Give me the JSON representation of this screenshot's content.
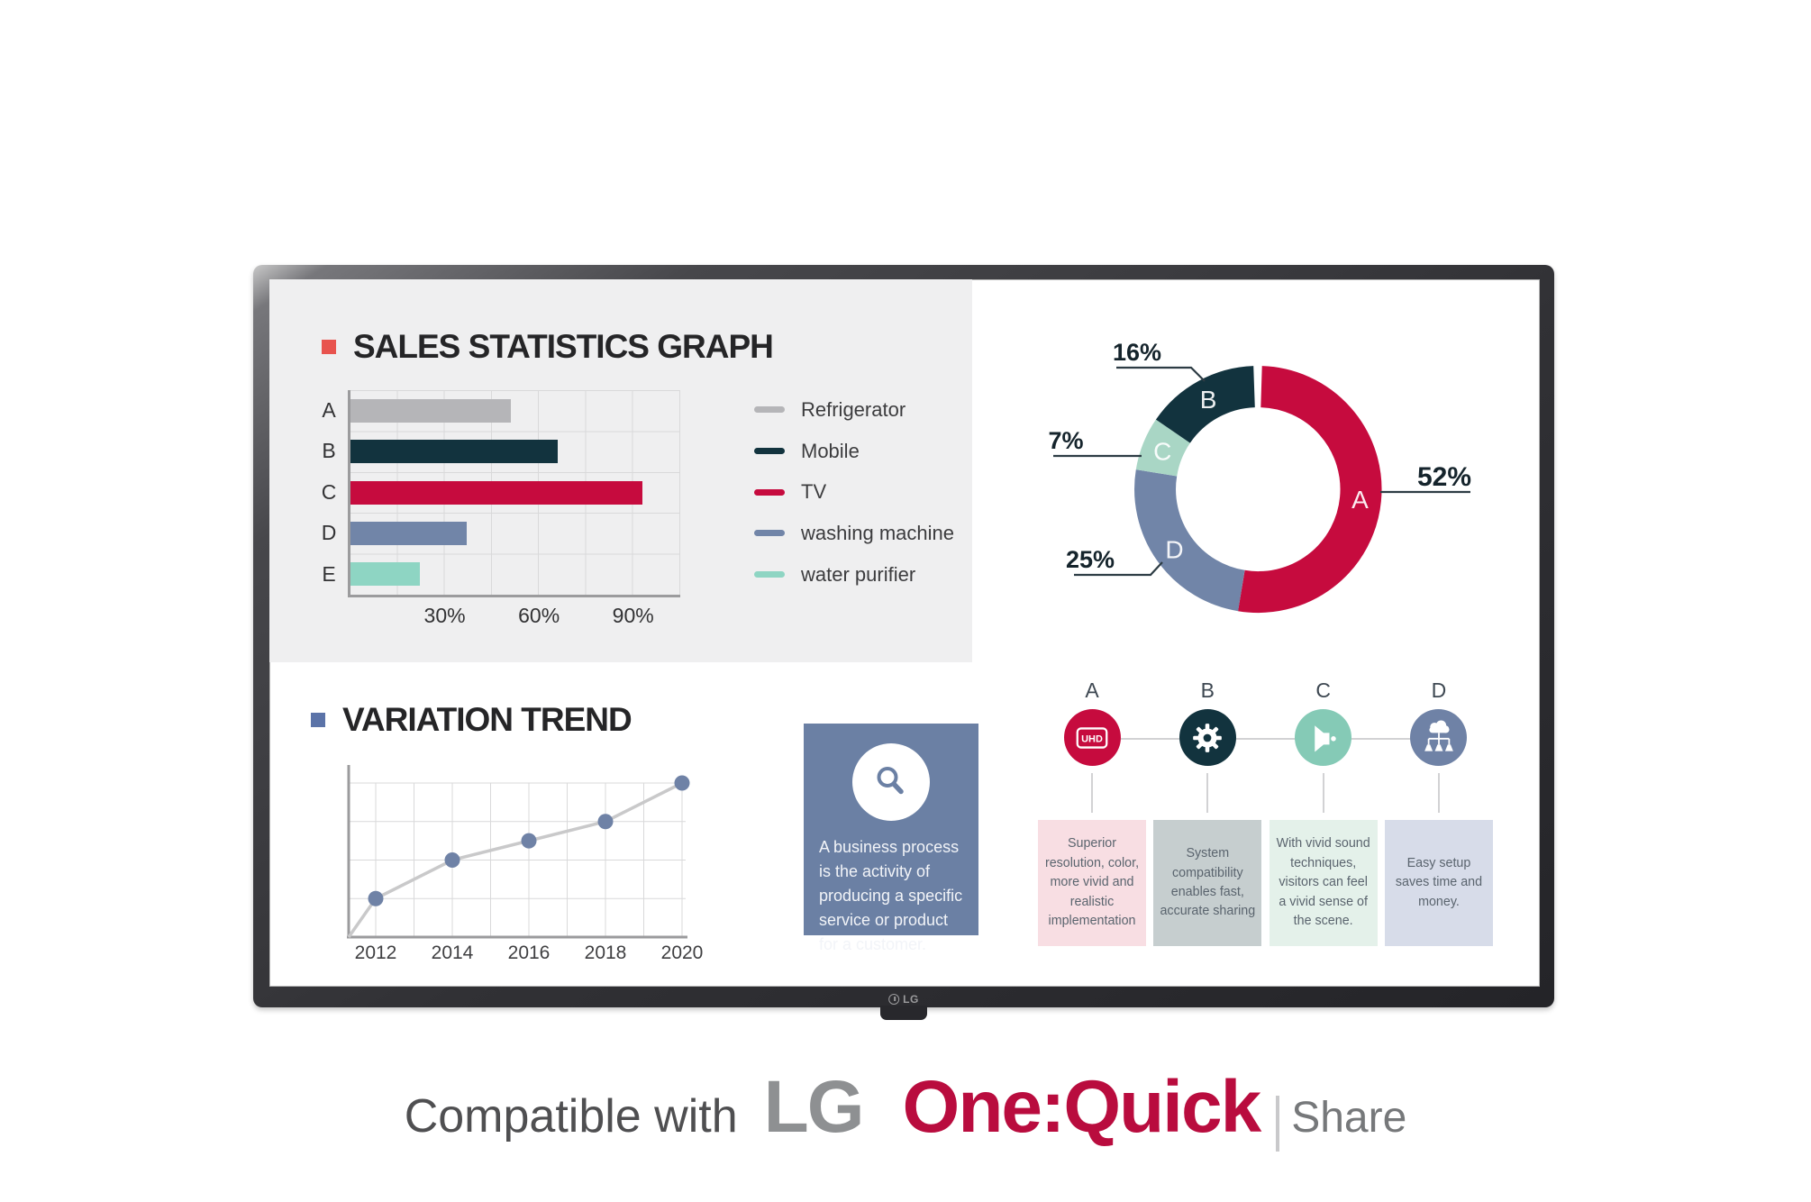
{
  "monitor": {
    "logo": "LG"
  },
  "screen": {
    "sales_panel": {
      "bullet_color": "#e8534e",
      "title": "SALES STATISTICS GRAPH"
    },
    "variation_panel": {
      "bullet_color": "#5b73a8",
      "title": "VARIATION TREND"
    },
    "process_box": {
      "background": "#6b80a4",
      "icon": "magnifier-icon",
      "text": "A business process is the activity of producing a specific service or product for a customer."
    },
    "features": {
      "items": [
        {
          "label": "A",
          "icon": "uhd-badge-icon",
          "icon_text": "UHD",
          "circle_color": "#c60b3e",
          "card_color": "#f8dee3",
          "text": "Superior resolution, color, more vivid and realistic implementation"
        },
        {
          "label": "B",
          "icon": "gear-icon",
          "circle_color": "#12333e",
          "card_color": "#c6cecf",
          "text": "System compatibility enables fast, accurate sharing"
        },
        {
          "label": "C",
          "icon": "speaker-icon",
          "circle_color": "#85cab6",
          "card_color": "#e4f1ea",
          "text": "With vivid sound techniques, visitors can feel a vivid sense of the scene."
        },
        {
          "label": "D",
          "icon": "network-icon",
          "circle_color": "#6f82a6",
          "card_color": "#d7dce9",
          "text": "Easy setup saves time and money."
        }
      ]
    }
  },
  "tagline": {
    "prefix": "Compatible with",
    "brand": "LG",
    "product": "One:Quick",
    "suffix": "Share",
    "product_color": "#b90c3e"
  },
  "chart_data": [
    {
      "type": "bar",
      "orientation": "horizontal",
      "title": "SALES STATISTICS GRAPH",
      "categories": [
        "A",
        "B",
        "C",
        "D",
        "E"
      ],
      "values": [
        51,
        66,
        93,
        37,
        22
      ],
      "unit": "%",
      "xlim": [
        0,
        105
      ],
      "x_tick_values": [
        30,
        60,
        90
      ],
      "x_tick_labels": [
        "30%",
        "60%",
        "90%"
      ],
      "grid": true,
      "bar_colors": [
        "#b5b5b8",
        "#12333e",
        "#c60b3e",
        "#7185a8",
        "#8ed5c3"
      ],
      "legend_position": "right",
      "legend": [
        {
          "label": "Refrigerator",
          "color": "#b5b5b8"
        },
        {
          "label": "Mobile",
          "color": "#12333e"
        },
        {
          "label": "TV",
          "color": "#c60b3e"
        },
        {
          "label": "washing machine",
          "color": "#7185a8"
        },
        {
          "label": "water purifier",
          "color": "#8ed5c3"
        }
      ]
    },
    {
      "type": "pie",
      "subtype": "donut",
      "start": "top",
      "direction": "clockwise",
      "segments": [
        {
          "label": "A",
          "value": 52,
          "pct_label": "52%",
          "color": "#c60b3e"
        },
        {
          "label": "D",
          "value": 25,
          "pct_label": "25%",
          "color": "#7185a8"
        },
        {
          "label": "C",
          "value": 7,
          "pct_label": "7%",
          "color": "#a9d6c5"
        },
        {
          "label": "B",
          "value": 16,
          "pct_label": "16%",
          "color": "#12333e"
        }
      ]
    },
    {
      "type": "line",
      "title": "VARIATION TREND",
      "x": [
        2012,
        2014,
        2016,
        2018,
        2020
      ],
      "values": [
        1,
        2,
        2.5,
        3,
        4
      ],
      "ylim": [
        0,
        4.47
      ],
      "grid": true,
      "line_color": "#c9c9ca",
      "point_color": "#6f82a6",
      "axis_color": "#9b9b9d"
    }
  ]
}
